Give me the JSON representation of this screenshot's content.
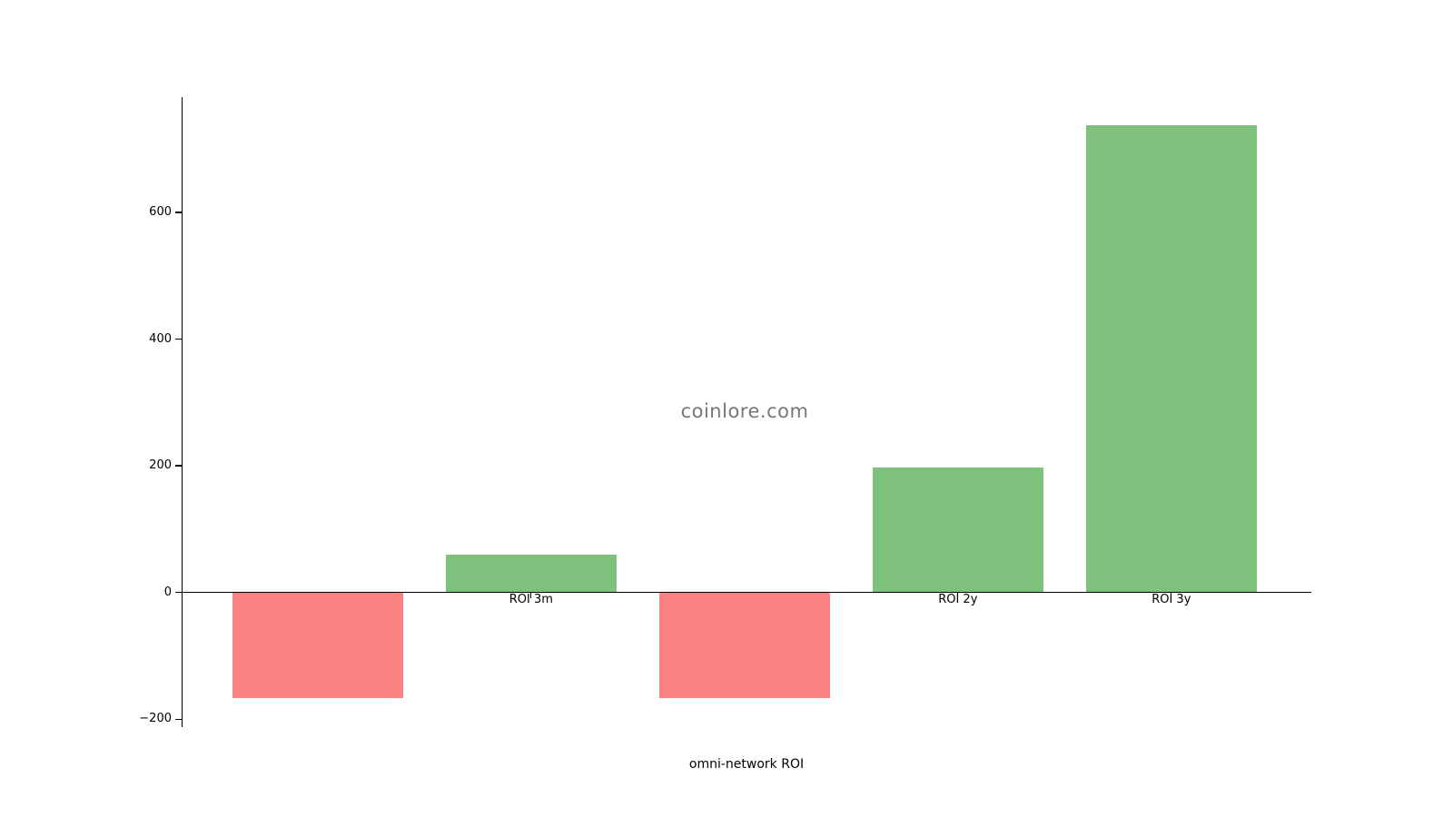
{
  "page": {
    "background": "#ffffff"
  },
  "watermark": {
    "text": "coinlore.com",
    "color": "#777777"
  },
  "chart_data": {
    "type": "bar",
    "title": "",
    "xlabel": "omni-network ROI",
    "ylabel": "",
    "categories": [
      "",
      "ROI 3m",
      "",
      "ROI 2y",
      "ROI 3y"
    ],
    "values": [
      -167,
      60,
      -167,
      198,
      737
    ],
    "bar_colors": [
      "#fc8181",
      "#7dc17d",
      "#fc8181",
      "#7dc17d",
      "#7dc17d"
    ],
    "label_visible": [
      false,
      true,
      false,
      true,
      true
    ],
    "yticks": [
      -200,
      0,
      200,
      400,
      600
    ],
    "ytick_labels": [
      "−200",
      "0",
      "200",
      "400",
      "600"
    ],
    "ylim": [
      -212,
      782
    ],
    "grid": false,
    "legend": null,
    "colors": {
      "positive": "#7dc17d",
      "negative": "#fc8181",
      "axis": "#000000"
    }
  }
}
